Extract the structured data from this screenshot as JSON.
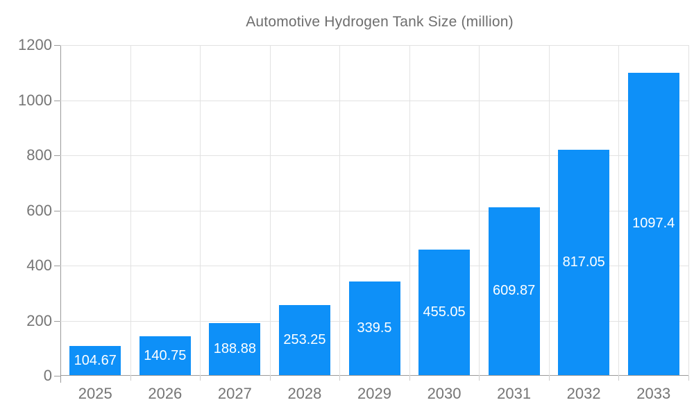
{
  "legend": {
    "label": "Automotive Hydrogen Tank Size (million)"
  },
  "chart_data": {
    "type": "bar",
    "title": "Automotive Hydrogen Tank Size (million)",
    "categories": [
      "2025",
      "2026",
      "2027",
      "2028",
      "2029",
      "2030",
      "2031",
      "2032",
      "2033"
    ],
    "values": [
      104.67,
      140.75,
      188.88,
      253.25,
      339.5,
      455.05,
      609.87,
      817.05,
      1097.4
    ],
    "value_labels": [
      "104.67",
      "140.75",
      "188.88",
      "253.25",
      "339.5",
      "455.05",
      "609.87",
      "817.05",
      "1097.4"
    ],
    "xlabel": "",
    "ylabel": "",
    "ylim": [
      0,
      1200
    ],
    "y_ticks": [
      0,
      200,
      400,
      600,
      800,
      1000,
      1200
    ],
    "grid": true,
    "legend_position": "top-center",
    "bar_label_position": "inside-center"
  },
  "colors": {
    "bar": "#0e90f8",
    "bar_label": "#ffffff",
    "axis_text": "#757575",
    "legend_text": "#6e6e6e",
    "axis_line": "#9a9a9a",
    "grid_line": "#e2e2e2"
  }
}
